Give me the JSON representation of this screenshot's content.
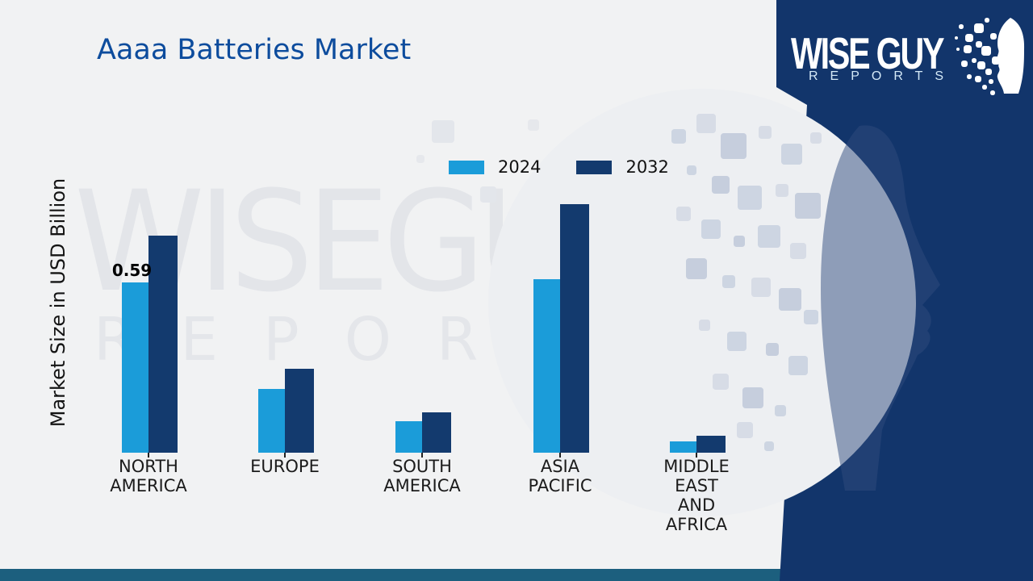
{
  "title": {
    "text": "Aaaa Batteries Market"
  },
  "brand": {
    "name_line1": "WISE GUY",
    "name_line2": "REPORTS",
    "watermark_line1": "WISEGUY",
    "watermark_line2": "REPORTS"
  },
  "colors": {
    "title_blue": "#0d4c9d",
    "accent_2024": "#1b9cd9",
    "accent_2032": "#133a6e",
    "panel_navy": "#12356b",
    "bottom_bar_teal": "#1c5f7e",
    "watermark_gray": "#d8dbe2"
  },
  "chart_data": {
    "type": "bar",
    "title": "Aaaa Batteries Market",
    "ylabel": "Market Size in USD Billion",
    "xlabel": "",
    "categories": [
      "NORTH AMERICA",
      "EUROPE",
      "SOUTH AMERICA",
      "ASIA PACIFIC",
      "MIDDLE EAST AND AFRICA"
    ],
    "series": [
      {
        "name": "2024",
        "color": "#1b9cd9",
        "values": [
          0.59,
          0.22,
          0.11,
          0.6,
          0.04
        ]
      },
      {
        "name": "2032",
        "color": "#133a6e",
        "values": [
          0.75,
          0.29,
          0.14,
          0.86,
          0.06
        ]
      }
    ],
    "bar_value_labels": [
      {
        "series_index": 0,
        "category_index": 0,
        "text": "0.59"
      }
    ],
    "ylim": [
      0,
      0.95
    ],
    "grid": false,
    "legend_position": "top-right"
  }
}
